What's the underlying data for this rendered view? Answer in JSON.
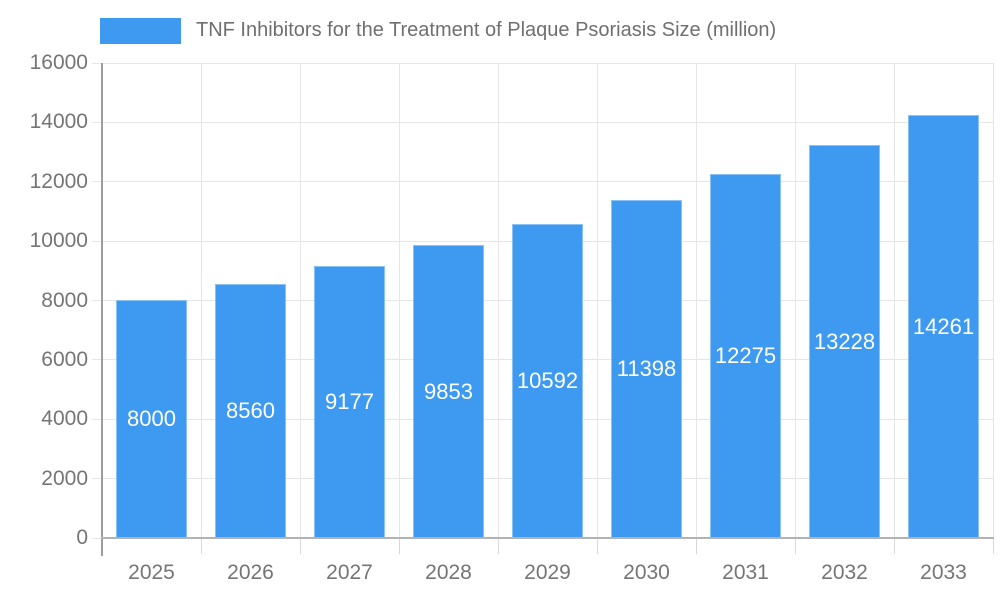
{
  "legend": {
    "label": "TNF Inhibitors for the Treatment of Plaque Psoriasis Size (million)"
  },
  "colors": {
    "bar": "#3D9AF0",
    "bar_stroke": "#B3D7F7",
    "axis_text": "#757575",
    "legend_text": "#6F6F6F",
    "grid": "#E6E6E6",
    "y_axis_line": "#9E9E9E",
    "baseline": "#B3B3B3",
    "x_tick": "#D9D9D9",
    "value_label": "#FFFFFF"
  },
  "chart_data": {
    "type": "bar",
    "title": "TNF Inhibitors for the Treatment of Plaque Psoriasis Size (million)",
    "categories": [
      "2025",
      "2026",
      "2027",
      "2028",
      "2029",
      "2030",
      "2031",
      "2032",
      "2033"
    ],
    "values": [
      8000,
      8560,
      9177,
      9853,
      10592,
      11398,
      12275,
      13228,
      14261
    ],
    "xlabel": "",
    "ylabel": "",
    "ylim": [
      0,
      16000
    ],
    "ytick_step": 2000,
    "yticks": [
      0,
      2000,
      4000,
      6000,
      8000,
      10000,
      12000,
      14000,
      16000
    ],
    "grid": true,
    "legend_position": "top-left",
    "bar_value_labels": "inside-center"
  }
}
